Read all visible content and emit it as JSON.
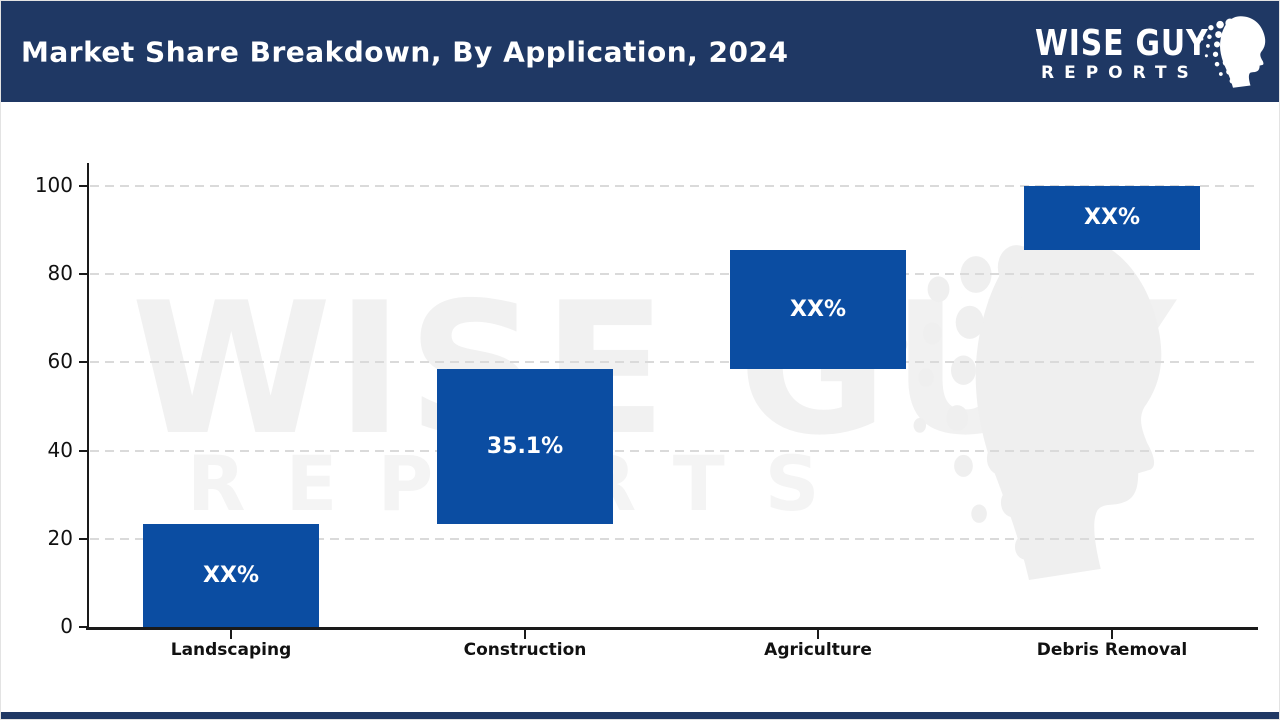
{
  "header": {
    "title": "Market Share Breakdown, By Application, 2024",
    "logo": {
      "line1": "WISE GUY",
      "line2": "REPORTS"
    },
    "bg_color": "#1f3864"
  },
  "watermark": {
    "line1": "WISE GUY",
    "line2": "REPORTS"
  },
  "chart_data": {
    "type": "bar",
    "subtype": "waterfall",
    "title": "Market Share Breakdown, By Application, 2024",
    "categories": [
      "Landscaping",
      "Construction",
      "Agriculture",
      "Debris Removal"
    ],
    "segments": [
      {
        "category": "Landscaping",
        "start": 0,
        "end": 23.3,
        "value": 23.3,
        "label": "XX%"
      },
      {
        "category": "Construction",
        "start": 23.3,
        "end": 58.4,
        "value": 35.1,
        "label": "35.1%"
      },
      {
        "category": "Agriculture",
        "start": 58.4,
        "end": 85.5,
        "value": 27.1,
        "label": "XX%"
      },
      {
        "category": "Debris Removal",
        "start": 85.5,
        "end": 100,
        "value": 14.5,
        "label": "XX%"
      }
    ],
    "ylim": [
      0,
      100
    ],
    "yticks": [
      0,
      20,
      40,
      60,
      80,
      100
    ],
    "xlabel": "",
    "ylabel": "",
    "grid": "horizontal-dashed",
    "legend": "none",
    "bar_color": "#0b4da2",
    "bar_label_color": "#ffffff"
  }
}
